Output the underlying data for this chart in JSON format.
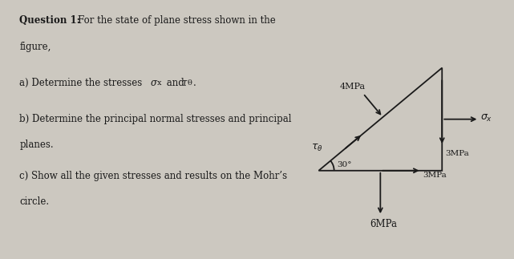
{
  "bg_color": "#ccc8c0",
  "text_color": "#1a1a1a",
  "title_bold": "Question 1:",
  "title_rest": " For the state of plane stress shown in the\nfigure,",
  "item_a_pre": "a) Determine the stresses ",
  "item_a_sx": "σ",
  "item_a_sub": "x",
  "item_a_mid": " and ",
  "item_a_tau": "τ",
  "item_a_tsub": "θ",
  "item_a_end": ".",
  "item_b": "b) Determine the principal normal stresses and principal\nplanes.",
  "item_c": "c) Show all the given stresses and results on the Mohr’s\ncircle.",
  "lbl_4mpa": "4MPa",
  "lbl_6mpa": "6MPa",
  "lbl_3mpa_v": "3MPa",
  "lbl_3mpa_h": "3MPa",
  "lbl_sigma": "σ",
  "lbl_sigma_sub": "x",
  "lbl_tau": "τ",
  "lbl_tau_sub": "θ",
  "lbl_angle": "30",
  "line_color": "#1a1a1a",
  "font_size": 8.5
}
